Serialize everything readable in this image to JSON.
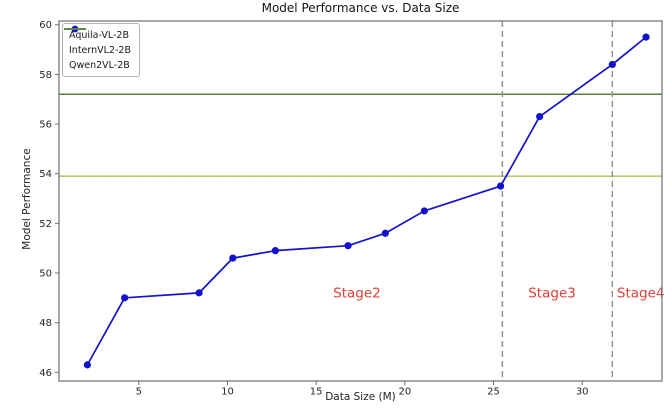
{
  "chart_data": {
    "type": "line",
    "title": "Model Performance vs. Data Size",
    "xlabel": "Data Size (M)",
    "ylabel": "Model Performance",
    "xlim": [
      0.5,
      34.5
    ],
    "ylim": [
      45.65,
      60.15
    ],
    "x_ticks": [
      5,
      10,
      15,
      20,
      25,
      30
    ],
    "y_ticks": [
      46,
      48,
      50,
      52,
      54,
      56,
      58,
      60
    ],
    "grid": false,
    "legend_position": "upper-left",
    "series": [
      {
        "name": "Aquila-VL-2B",
        "type": "line",
        "marker": "circle",
        "color": "#1212cc",
        "x": [
          2.1,
          4.2,
          8.4,
          10.3,
          12.7,
          16.8,
          18.9,
          21.1,
          25.4,
          27.6,
          31.7,
          33.6
        ],
        "y": [
          46.3,
          49.0,
          49.2,
          50.6,
          50.9,
          51.1,
          51.6,
          52.5,
          53.5,
          56.3,
          58.4,
          59.5
        ]
      },
      {
        "name": "InternVL2-2B",
        "type": "hline",
        "color": "#c2c46e",
        "value": 53.9
      },
      {
        "name": "Qwen2VL-2B",
        "type": "hline",
        "color": "#55803c",
        "value": 57.2
      }
    ],
    "vlines": [
      {
        "x": 25.5,
        "color": "#8f8f8f",
        "style": "dashed"
      },
      {
        "x": 31.7,
        "color": "#8f8f8f",
        "style": "dashed"
      }
    ],
    "annotations": [
      {
        "text": "Stage2",
        "x": 17.3,
        "y": 49.2,
        "color": "#dd4035"
      },
      {
        "text": "Stage3",
        "x": 28.3,
        "y": 49.2,
        "color": "#dd4035"
      },
      {
        "text": "Stage4",
        "x": 33.3,
        "y": 49.2,
        "color": "#dd4035"
      }
    ]
  }
}
